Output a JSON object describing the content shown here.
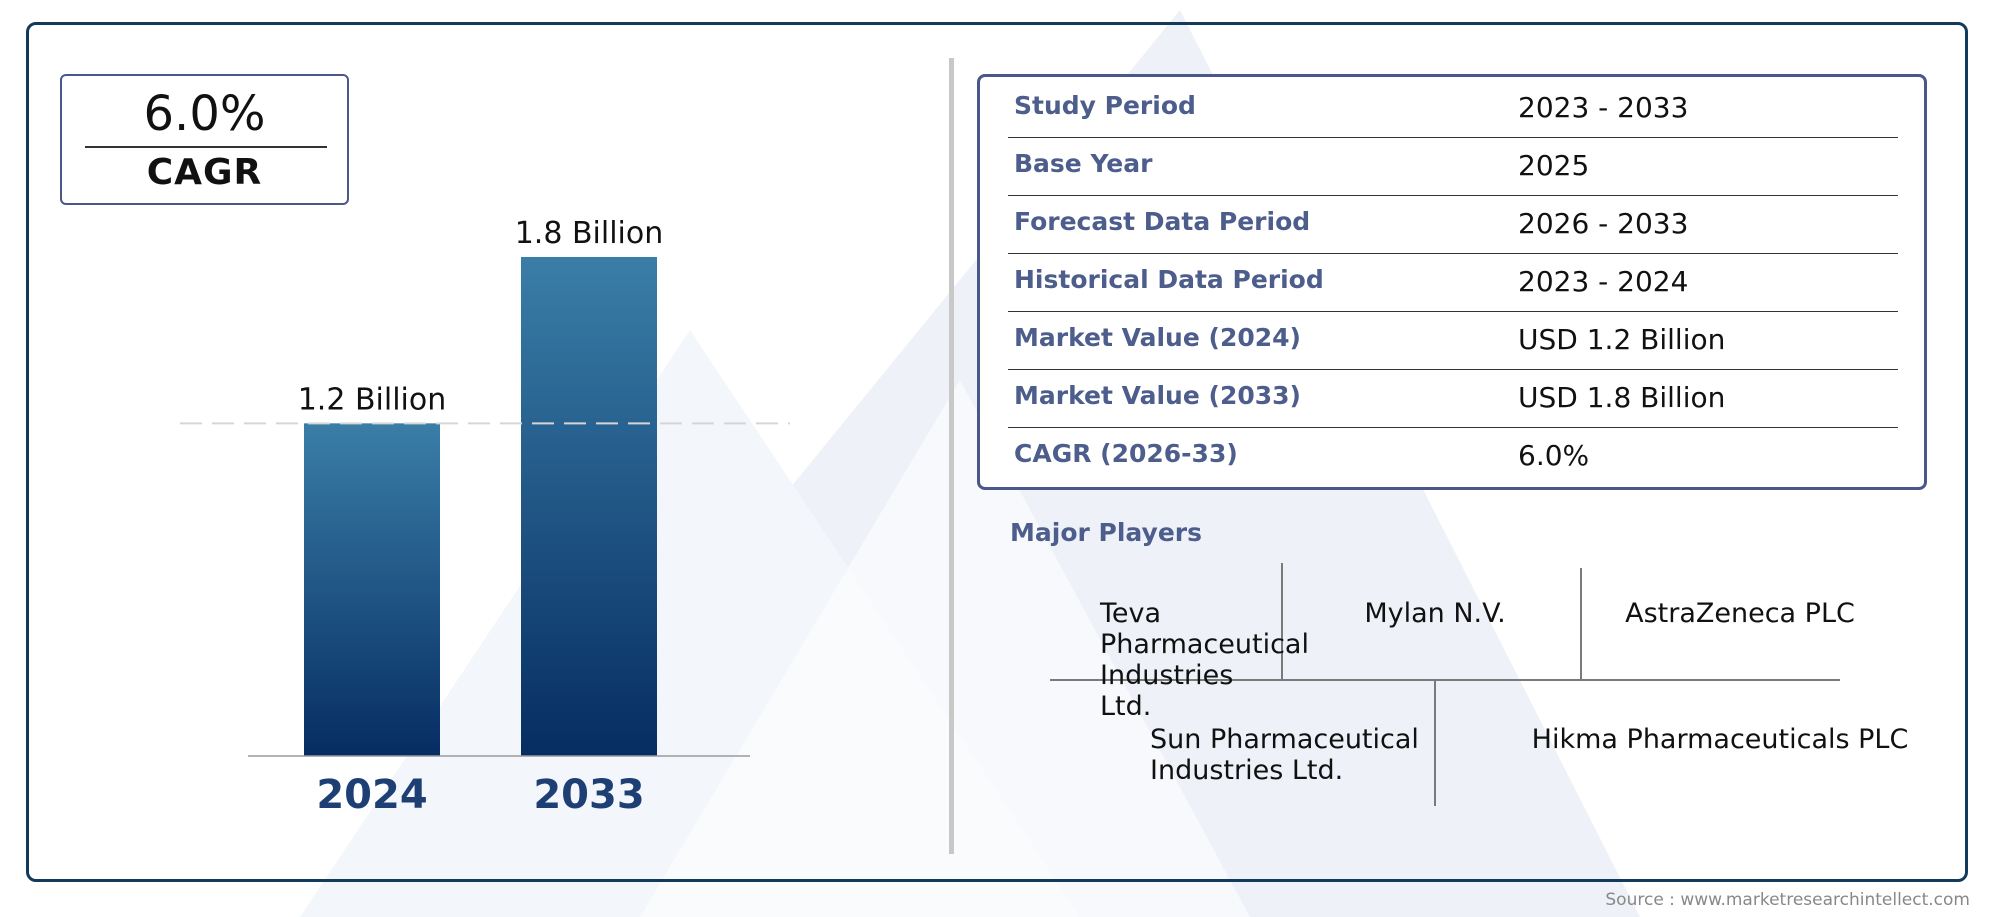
{
  "cagr_badge": {
    "value": "6.0%",
    "label": "CAGR"
  },
  "chart_data": {
    "type": "bar",
    "categories": [
      "2024",
      "2033"
    ],
    "values": [
      1.2,
      1.8
    ],
    "data_labels": [
      "1.2 Billion",
      "1.8 Billion"
    ],
    "title": "",
    "xlabel": "",
    "ylabel": "",
    "ylim": [
      0,
      1.8
    ],
    "grid": false,
    "reference_line": {
      "value": 1.2,
      "style": "dashed"
    },
    "colors": {
      "bar_top": "#3a7ea8",
      "bar_bottom": "#062d62",
      "category_label": "#1d3f73"
    }
  },
  "info_table": {
    "rows": [
      {
        "label": "Study Period",
        "value": "2023 - 2033"
      },
      {
        "label": "Base Year",
        "value": "2025"
      },
      {
        "label": "Forecast Data Period",
        "value": "2026 - 2033"
      },
      {
        "label": "Historical Data Period",
        "value": "2023 - 2024"
      },
      {
        "label": "Market Value (2024)",
        "value": "USD 1.2 Billion"
      },
      {
        "label": "Market Value (2033)",
        "value": "USD 1.8 Billion"
      },
      {
        "label": "CAGR (2026-33)",
        "value": "6.0%"
      }
    ]
  },
  "major_players": {
    "title": "Major Players",
    "players": [
      "Teva Pharmaceutical Industries Ltd.",
      "Mylan N.V.",
      "AstraZeneca PLC",
      "Sun Pharmaceutical Industries Ltd.",
      "Hikma Pharmaceuticals PLC"
    ]
  },
  "source": "Source : www.marketresearchintellect.com",
  "colors": {
    "frame": "#123a5a",
    "accent": "#49578a",
    "label_text": "#4d5d8c"
  }
}
